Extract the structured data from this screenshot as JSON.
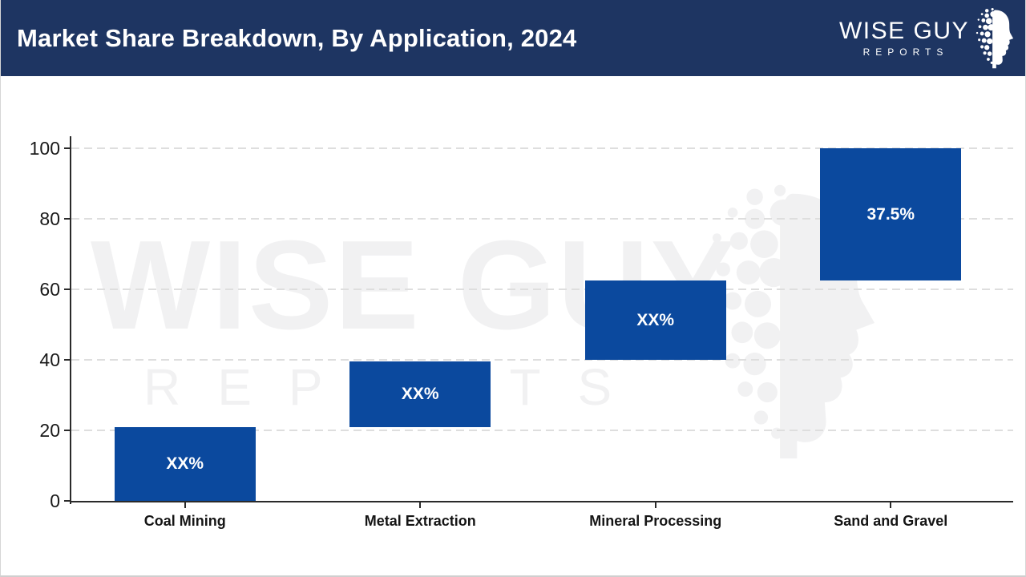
{
  "header": {
    "title": "Market Share Breakdown, By Application, 2024",
    "bg_color": "#1e3562",
    "logo": {
      "wordmark": "WISE GUY",
      "subtext": "REPORTS"
    }
  },
  "watermark": {
    "wordmark": "WISE GUY",
    "subtext": "REPORTS"
  },
  "chart_data": {
    "type": "bar",
    "subtype": "waterfall",
    "title": "Market Share Breakdown, By Application, 2024",
    "categories": [
      "Coal Mining",
      "Metal Extraction",
      "Mineral Processing",
      "Sand and Gravel"
    ],
    "series": [
      {
        "name": "Market share (%)",
        "segments": [
          {
            "category": "Coal Mining",
            "base": 0,
            "top": 21,
            "label": "XX%"
          },
          {
            "category": "Metal Extraction",
            "base": 21,
            "top": 39.5,
            "label": "XX%"
          },
          {
            "category": "Mineral Processing",
            "base": 40,
            "top": 62.5,
            "label": "XX%"
          },
          {
            "category": "Sand and Gravel",
            "base": 62.5,
            "top": 100,
            "label": "37.5%"
          }
        ]
      }
    ],
    "ylim": [
      0,
      100
    ],
    "yticks": [
      0,
      20,
      40,
      60,
      80,
      100
    ],
    "xlabel": "",
    "ylabel": "",
    "grid": "horizontal-dashed",
    "legend": "none",
    "bar_color": "#0b499e",
    "bar_label_color": "#ffffff"
  }
}
